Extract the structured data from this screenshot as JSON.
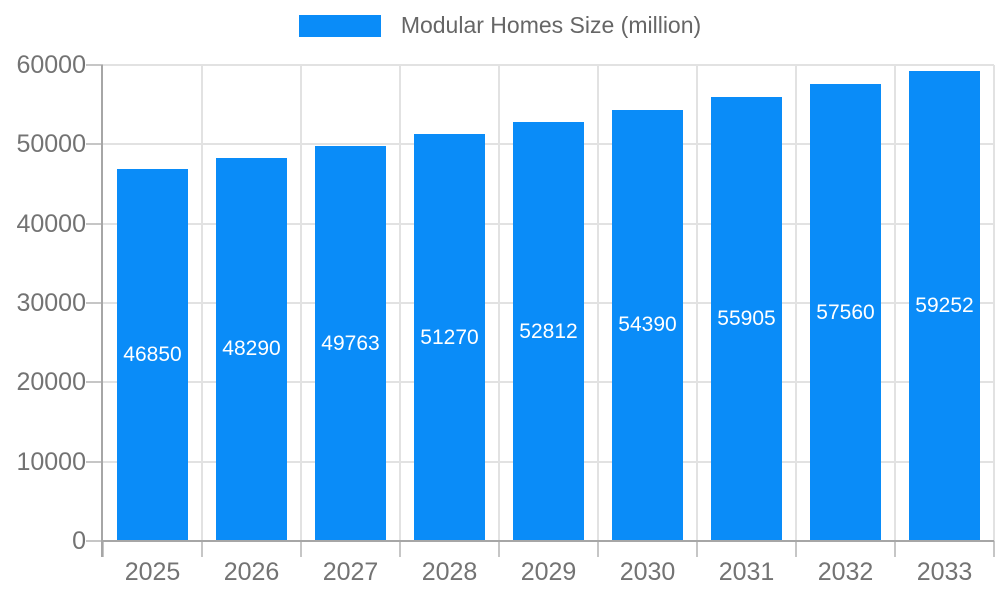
{
  "legend": {
    "label": "Modular Homes Size (million)"
  },
  "colors": {
    "bar": "#0a8cf8",
    "grid": "#e2e2e2",
    "axis": "#a6a6a6",
    "tick": "#c6c6c6",
    "axis_label": "#737373",
    "legend_label": "#666666",
    "value_label": "#ffffff",
    "background": "#ffffff"
  },
  "chart_data": {
    "type": "bar",
    "title": "Modular Homes Size (million)",
    "categories": [
      "2025",
      "2026",
      "2027",
      "2028",
      "2029",
      "2030",
      "2031",
      "2032",
      "2033"
    ],
    "values": [
      46850,
      48290,
      49763,
      51270,
      52812,
      54390,
      55905,
      57560,
      59252
    ],
    "xlabel": "",
    "ylabel": "",
    "ylim": [
      0,
      60000
    ],
    "ytick_step": 10000,
    "ytick_labels": [
      "0",
      "10000",
      "20000",
      "30000",
      "40000",
      "50000",
      "60000"
    ],
    "grid": true,
    "legend_position": "top",
    "value_label_position": "inside-center"
  }
}
